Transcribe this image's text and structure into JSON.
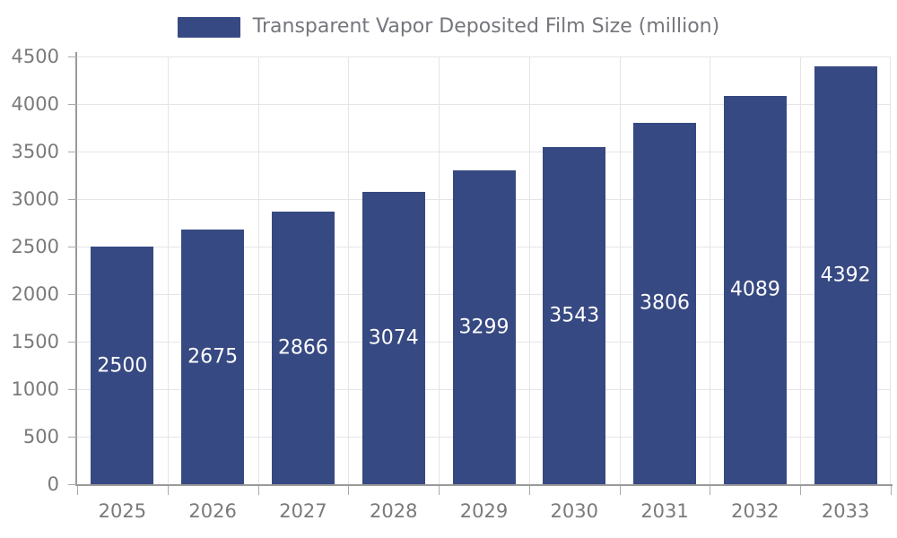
{
  "legend": {
    "label": "Transparent Vapor Deposited Film Size (million)",
    "swatch_color": "#374982",
    "text_color": "#74767c"
  },
  "chart_data": {
    "type": "bar",
    "title": "",
    "xlabel": "",
    "ylabel": "",
    "categories": [
      "2025",
      "2026",
      "2027",
      "2028",
      "2029",
      "2030",
      "2031",
      "2032",
      "2033"
    ],
    "series": [
      {
        "name": "Transparent Vapor Deposited Film Size (million)",
        "values": [
          2500,
          2675,
          2866,
          3074,
          3299,
          3543,
          3806,
          4089,
          4392
        ]
      }
    ],
    "bar_labels": [
      "2500",
      "2675",
      "2866",
      "3074",
      "3299",
      "3543",
      "3806",
      "4089",
      "4392"
    ],
    "ylim": [
      0,
      4500
    ],
    "yticks": [
      0,
      500,
      1000,
      1500,
      2000,
      2500,
      3000,
      3500,
      4000,
      4500
    ],
    "grid": true,
    "legend_position": "top-center",
    "style": {
      "bar_color": "#374982",
      "bar_label_color": "#ffffff",
      "grid_color": "#e5e5e8",
      "axis_color": "#9a9a9a",
      "tick_color": "#aaaaaa",
      "tick_label_color": "#7a7a7a",
      "background": "#ffffff"
    }
  }
}
